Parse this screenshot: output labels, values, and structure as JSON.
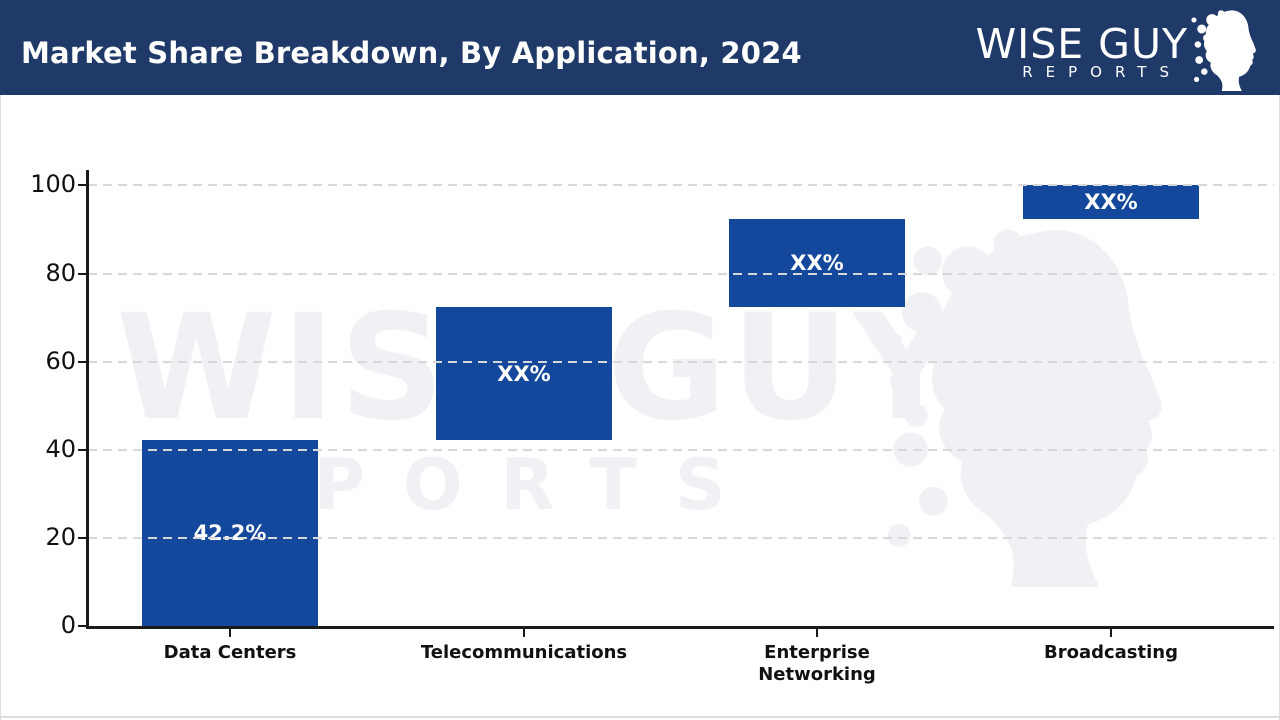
{
  "header": {
    "title": "Market Share Breakdown, By Application, 2024",
    "logo": {
      "primary": "WISE GUY",
      "secondary": "REPORTS"
    }
  },
  "watermark": {
    "primary": "WISE GUY",
    "secondary": "REPORTS"
  },
  "colors": {
    "header_bg": "#1F3A68",
    "bar": "#14489C",
    "bar_label": "#FFFFFF",
    "grid": "#D8D8D8",
    "axis": "#1A1A1A",
    "watermark": "#F0F1F4"
  },
  "chart_data": {
    "type": "bar",
    "variant": "waterfall",
    "title": "Market Share Breakdown, By Application, 2024",
    "xlabel": "",
    "ylabel": "",
    "ylim": [
      0,
      100
    ],
    "yticks": [
      0,
      20,
      40,
      60,
      80,
      100
    ],
    "grid": "horizontal-dashed",
    "legend": "none",
    "categories": [
      "Data Centers",
      "Telecommunications",
      "Enterprise Networking",
      "Broadcasting"
    ],
    "category_lines": [
      [
        "Data Centers"
      ],
      [
        "Telecommunications"
      ],
      [
        "Enterprise",
        "Networking"
      ],
      [
        "Broadcasting"
      ]
    ],
    "segments": [
      {
        "category": "Data Centers",
        "start": 0,
        "end": 42.2,
        "label": "42.2%"
      },
      {
        "category": "Telecommunications",
        "start": 42.2,
        "end": 72.4,
        "label": "XX%"
      },
      {
        "category": "Enterprise Networking",
        "start": 72.4,
        "end": 92.3,
        "label": "XX%"
      },
      {
        "category": "Broadcasting",
        "start": 92.3,
        "end": 100,
        "label": "XX%"
      }
    ],
    "bar_color": "#14489C",
    "label_color": "#FFFFFF"
  }
}
